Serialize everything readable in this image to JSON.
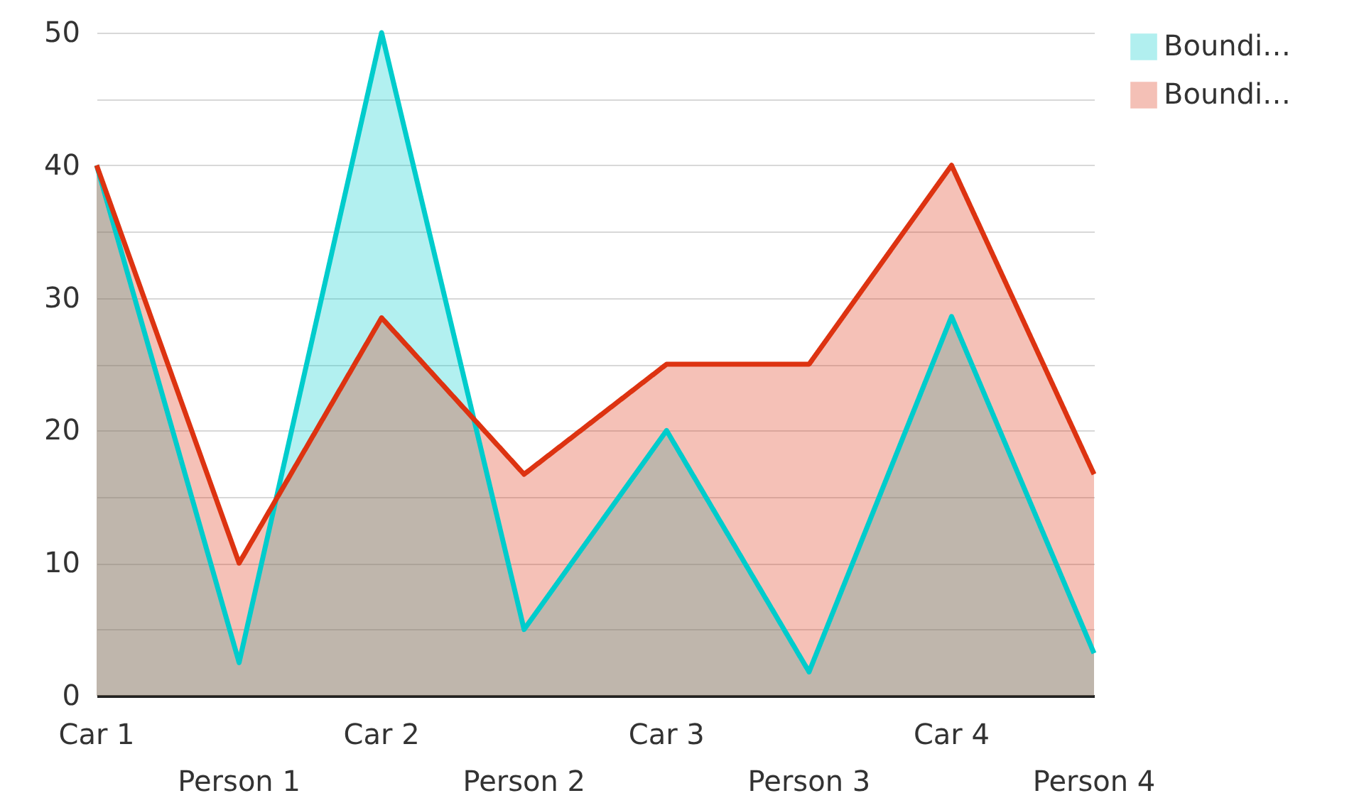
{
  "chart_data": {
    "type": "area",
    "categories": [
      "Car 1",
      "Person 1",
      "Car 2",
      "Person 2",
      "Car 3",
      "Person 3",
      "Car 4",
      "Person 4"
    ],
    "series": [
      {
        "name": "Boundi…",
        "color": "#00cccc",
        "values": [
          40,
          2.5,
          50,
          5,
          20,
          1.8,
          28.6,
          3.2
        ]
      },
      {
        "name": "Boundi…",
        "color": "#dd3311",
        "values": [
          40,
          10,
          28.5,
          16.7,
          25,
          25,
          40,
          16.7
        ]
      }
    ],
    "ylim": [
      0,
      50
    ],
    "yticks": [
      0,
      {
        "value": 5,
        "label": null
      },
      10,
      {
        "value": 15,
        "label": null
      },
      20,
      {
        "value": 25,
        "label": null
      },
      30,
      {
        "value": 35,
        "label": null
      },
      40,
      {
        "value": 45,
        "label": null
      },
      50
    ],
    "grid": "y",
    "legend": "top right",
    "line_style": "solid"
  }
}
